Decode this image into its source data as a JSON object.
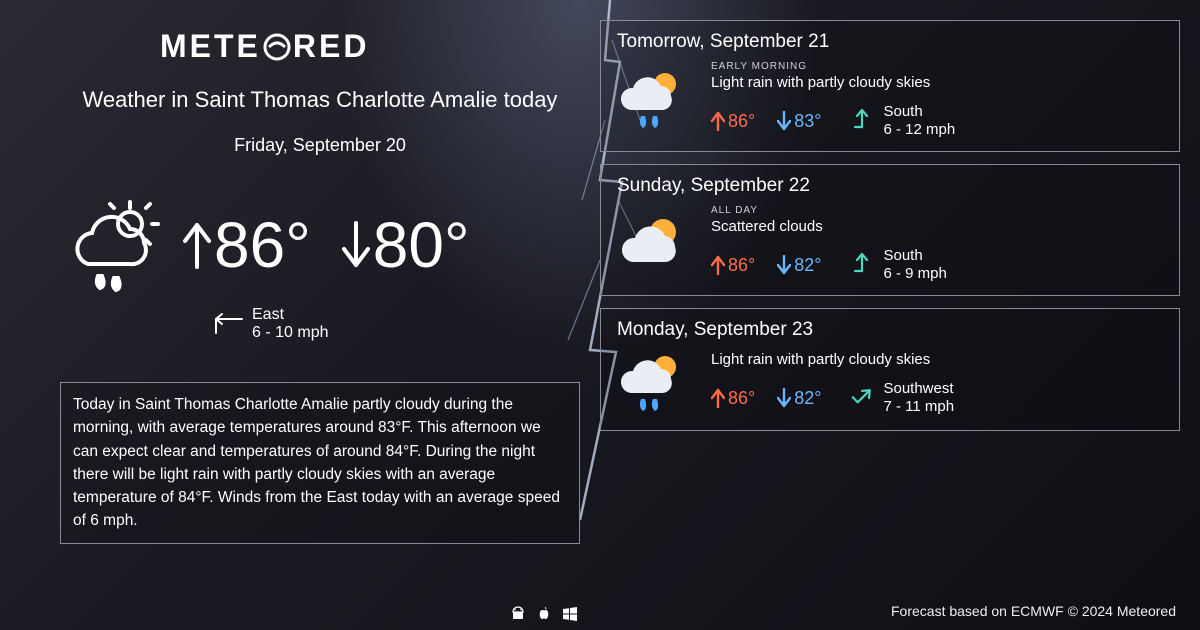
{
  "brand": "METEORED",
  "colors": {
    "text": "#ffffff",
    "hi": "#ff6a4d",
    "lo": "#6ab7ff",
    "wind": "#4dd6c1",
    "border": "#8a8a92",
    "muted": "#cfcfd6",
    "bg_top": "#2a2a33",
    "bg_bottom": "#0e0e14"
  },
  "heading": "Weather in Saint Thomas Charlotte Amalie today",
  "today": {
    "date": "Friday, September 20",
    "hi": "86°",
    "lo": "80°",
    "wind_dir": "East",
    "wind_speed": "6 - 10 mph",
    "condition_icon": "rain-partly-cloudy-outline"
  },
  "summary": "Today in Saint Thomas Charlotte Amalie partly cloudy during the morning, with average temperatures around 83°F. This afternoon we can expect clear and temperatures of around 84°F. During the night there will be light rain with partly cloudy skies with an average temperature of 84°F. Winds from the East today with an average speed of 6 mph.",
  "days": [
    {
      "title": "Tomorrow, September 21",
      "daypart": "EARLY MORNING",
      "condition": "Light rain with partly cloudy skies",
      "icon": "rain-partly-cloudy",
      "hi": "86°",
      "lo": "83°",
      "wind_dir": "South",
      "wind_speed": "6 - 12 mph",
      "wind_angle": 0
    },
    {
      "title": "Sunday, September 22",
      "daypart": "ALL DAY",
      "condition": "Scattered clouds",
      "icon": "partly-cloudy",
      "hi": "86°",
      "lo": "82°",
      "wind_dir": "South",
      "wind_speed": "6 - 9 mph",
      "wind_angle": 0
    },
    {
      "title": "Monday, September 23",
      "daypart": "",
      "condition": "Light rain with partly cloudy skies",
      "icon": "rain-partly-cloudy",
      "hi": "86°",
      "lo": "82°",
      "wind_dir": "Southwest",
      "wind_speed": "7 - 11 mph",
      "wind_angle": 45
    }
  ],
  "footer": "Forecast based on ECMWF © 2024 Meteored",
  "platforms": [
    "android",
    "apple",
    "windows"
  ]
}
